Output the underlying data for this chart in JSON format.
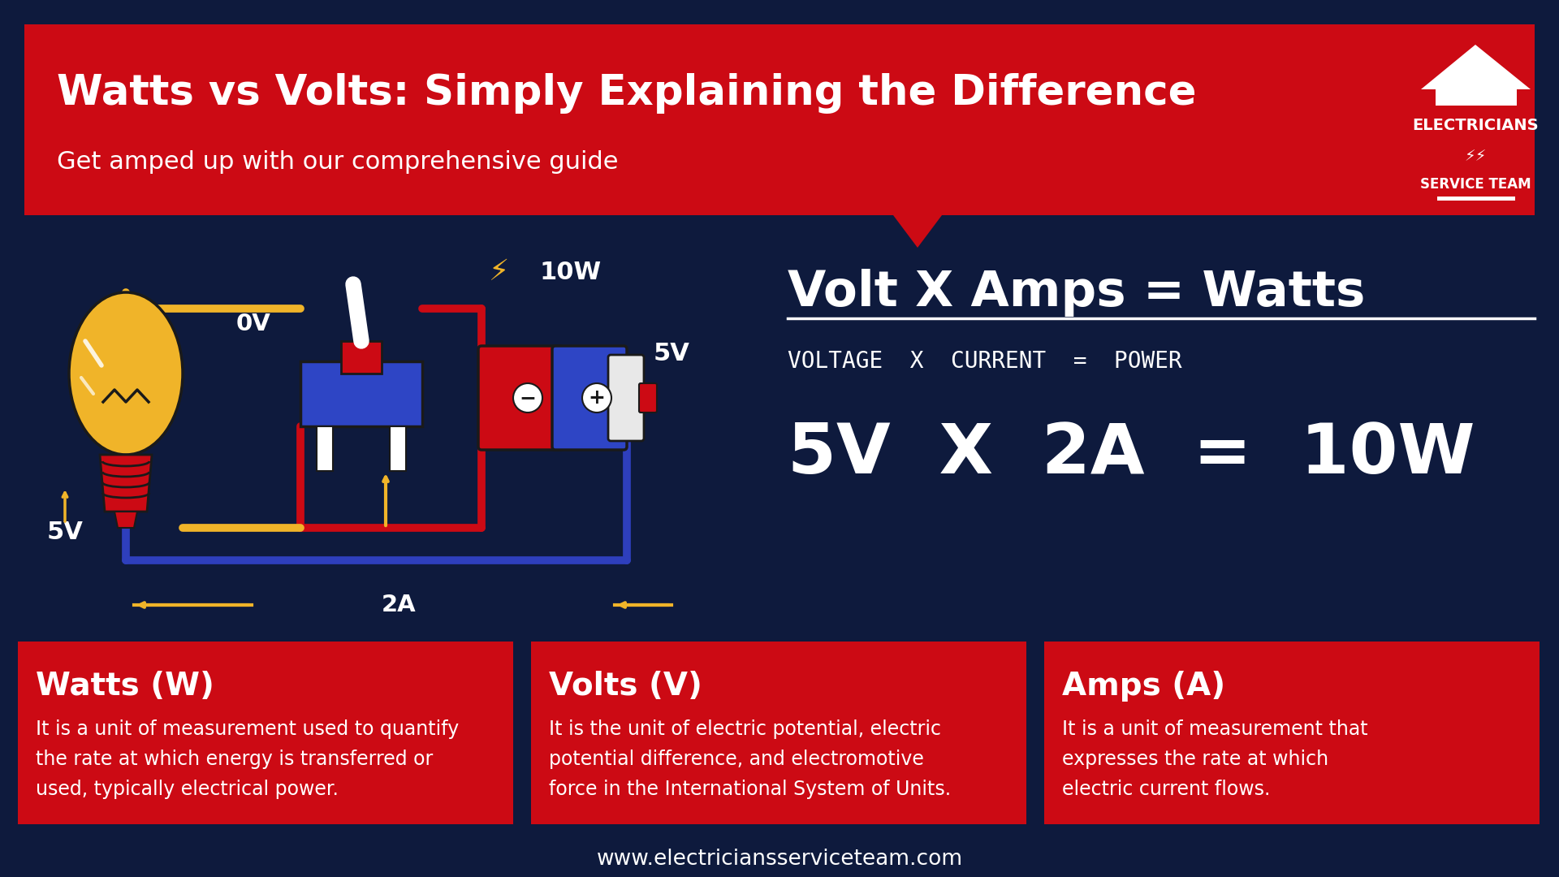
{
  "bg_color": "#0e1a3d",
  "red_color": "#cc0a14",
  "white": "#ffffff",
  "yellow": "#f0b429",
  "blue_wire": "#2e3fbd",
  "blue_switch": "#2e45c5",
  "title": "Watts vs Volts: Simply Explaining the Difference",
  "subtitle": "Get amped up with our comprehensive guide",
  "logo_line1": "ELECTRICIANS",
  "logo_line2": "SERVICE TEAM",
  "formula_big": "Volt X Amps = Watts",
  "formula_mid": "VOLTAGE  X  CURRENT  =  POWER",
  "formula_small": "5V  X  2A  =  10W",
  "card1_title": "Watts (W)",
  "card1_text": "It is a unit of measurement used to quantify\nthe rate at which energy is transferred or\nused, typically electrical power.",
  "card2_title": "Volts (V)",
  "card2_text": "It is the unit of electric potential, electric\npotential difference, and electromotive\nforce in the International System of Units.",
  "card3_title": "Amps (A)",
  "card3_text": "It is a unit of measurement that\nexpresses the rate at which\nelectric current flows.",
  "footer": "www.electriciansserviceteam.com"
}
